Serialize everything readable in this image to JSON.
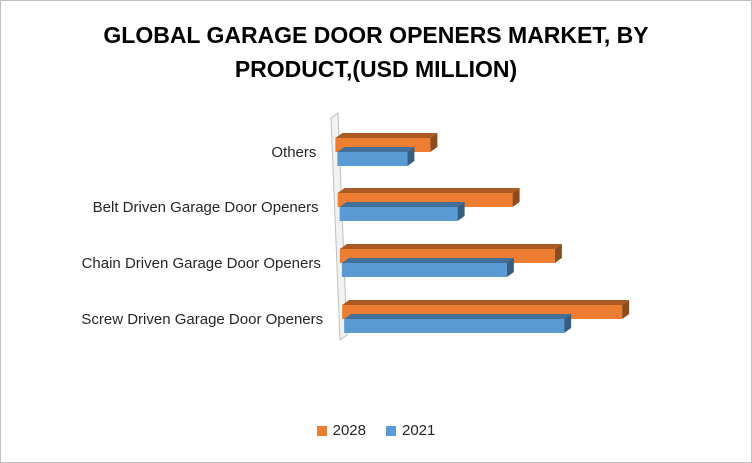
{
  "title_lines": [
    "GLOBAL GARAGE DOOR OPENERS MARKET, BY",
    "PRODUCT,(USD MILLION)"
  ],
  "chart_data": {
    "type": "bar",
    "orientation": "horizontal",
    "style": "3d",
    "title": "GLOBAL GARAGE DOOR OPENERS MARKET, BY PRODUCT,(USD MILLION)",
    "categories": [
      "Others",
      "Belt Driven Garage Door Openers",
      "Chain Driven Garage Door Openers",
      "Screw Driven Garage Door Openers"
    ],
    "series": [
      {
        "name": "2028",
        "color": "#ed7d31",
        "values": [
          95,
          175,
          215,
          280
        ]
      },
      {
        "name": "2021",
        "color": "#5b9bd5",
        "values": [
          70,
          118,
          165,
          220
        ]
      }
    ],
    "xlim": [
      0,
      290
    ],
    "legend_position": "bottom",
    "grid": false
  }
}
